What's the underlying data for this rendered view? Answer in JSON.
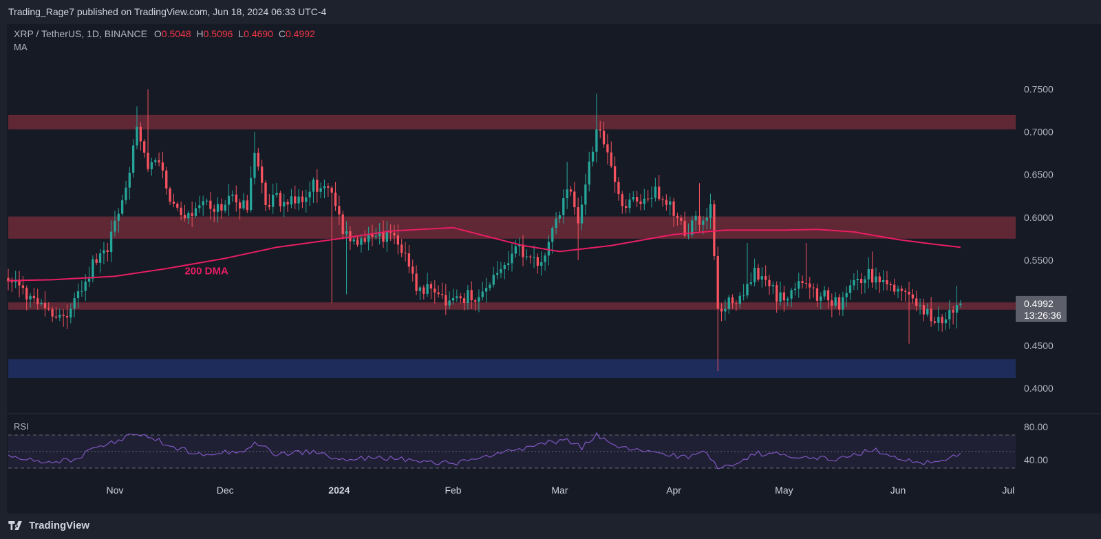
{
  "header": {
    "published_by": "Trading_Rage7 published on TradingView.com, Jun 18, 2024 06:33 UTC-4",
    "symbol": "XRP / TetherUS, 1D, BINANCE",
    "open_label": "O",
    "open_value": "0.5048",
    "high_label": "H",
    "high_value": "0.5096",
    "low_label": "L",
    "low_value": "0.4690",
    "close_label": "C",
    "close_value": "0.4992",
    "indicator_label": "MA"
  },
  "rsi_label": "RSI",
  "footer_brand": "TradingView",
  "colors": {
    "up": "#26a69a",
    "down": "#f7525f",
    "ma": "#e91e63",
    "resistance_zone": "#7a2c3a",
    "support_zone": "#1e2d5e",
    "rsi_line": "#7e57c2",
    "background": "#161a25"
  },
  "chart_data": [
    {
      "type": "candlestick",
      "y_ticks": [
        "0.7500",
        "0.7000",
        "0.6500",
        "0.6000",
        "0.5500",
        "0.4500",
        "0.4000"
      ],
      "ylim": [
        0.375,
        0.79
      ],
      "x_ticks": [
        "Nov",
        "Dec",
        "2024",
        "Feb",
        "Mar",
        "Apr",
        "May",
        "Jun",
        "Jul"
      ],
      "x_tick_dates": [
        "2023-11-01",
        "2023-12-01",
        "2024-01-01",
        "2024-02-01",
        "2024-03-01",
        "2024-04-01",
        "2024-05-01",
        "2024-06-01",
        "2024-07-01"
      ],
      "xlim": [
        "2023-10-03",
        "2024-07-03"
      ],
      "last_price": "0.4992",
      "countdown": "13:26:36",
      "anchors": [
        [
          "2023-10-03",
          0.525
        ],
        [
          "2023-10-10",
          0.505
        ],
        [
          "2023-10-13",
          0.485
        ],
        [
          "2023-10-20",
          0.49
        ],
        [
          "2023-10-23",
          0.52
        ],
        [
          "2023-10-26",
          0.545
        ],
        [
          "2023-10-30",
          0.56
        ],
        [
          "2023-11-04",
          0.64
        ],
        [
          "2023-11-07",
          0.7
        ],
        [
          "2023-11-10",
          0.66
        ],
        [
          "2023-11-13",
          0.67
        ],
        [
          "2023-11-16",
          0.62
        ],
        [
          "2023-11-20",
          0.6
        ],
        [
          "2023-11-24",
          0.62
        ],
        [
          "2023-11-28",
          0.605
        ],
        [
          "2023-12-02",
          0.62
        ],
        [
          "2023-12-07",
          0.61
        ],
        [
          "2023-12-09",
          0.67
        ],
        [
          "2023-12-12",
          0.62
        ],
        [
          "2023-12-17",
          0.62
        ],
        [
          "2023-12-20",
          0.615
        ],
        [
          "2023-12-25",
          0.64
        ],
        [
          "2023-12-30",
          0.625
        ],
        [
          "2024-01-03",
          0.575
        ],
        [
          "2024-01-06",
          0.57
        ],
        [
          "2024-01-09",
          0.585
        ],
        [
          "2024-01-12",
          0.575
        ],
        [
          "2024-01-16",
          0.575
        ],
        [
          "2024-01-19",
          0.56
        ],
        [
          "2024-01-23",
          0.51
        ],
        [
          "2024-01-26",
          0.52
        ],
        [
          "2024-01-30",
          0.5
        ],
        [
          "2024-02-04",
          0.505
        ],
        [
          "2024-02-09",
          0.51
        ],
        [
          "2024-02-15",
          0.54
        ],
        [
          "2024-02-18",
          0.57
        ],
        [
          "2024-02-21",
          0.555
        ],
        [
          "2024-02-25",
          0.545
        ],
        [
          "2024-02-28",
          0.58
        ],
        [
          "2024-03-03",
          0.64
        ],
        [
          "2024-03-06",
          0.59
        ],
        [
          "2024-03-08",
          0.63
        ],
        [
          "2024-03-11",
          0.71
        ],
        [
          "2024-03-14",
          0.68
        ],
        [
          "2024-03-17",
          0.62
        ],
        [
          "2024-03-21",
          0.62
        ],
        [
          "2024-03-27",
          0.63
        ],
        [
          "2024-03-31",
          0.61
        ],
        [
          "2024-04-04",
          0.58
        ],
        [
          "2024-04-08",
          0.6
        ],
        [
          "2024-04-11",
          0.61
        ],
        [
          "2024-04-13",
          0.49
        ],
        [
          "2024-04-17",
          0.5
        ],
        [
          "2024-04-21",
          0.52
        ],
        [
          "2024-04-23",
          0.54
        ],
        [
          "2024-04-27",
          0.52
        ],
        [
          "2024-05-01",
          0.5
        ],
        [
          "2024-05-05",
          0.53
        ],
        [
          "2024-05-10",
          0.51
        ],
        [
          "2024-05-16",
          0.5
        ],
        [
          "2024-05-20",
          0.525
        ],
        [
          "2024-05-24",
          0.535
        ],
        [
          "2024-05-28",
          0.52
        ],
        [
          "2024-06-02",
          0.52
        ],
        [
          "2024-06-06",
          0.5
        ],
        [
          "2024-06-09",
          0.49
        ],
        [
          "2024-06-12",
          0.48
        ],
        [
          "2024-06-16",
          0.495
        ],
        [
          "2024-06-18",
          0.4992
        ]
      ],
      "spikes": [
        [
          "2023-11-07",
          0.73,
          null
        ],
        [
          "2023-11-10",
          0.75,
          null
        ],
        [
          "2023-12-09",
          0.7,
          null
        ],
        [
          "2023-12-30",
          null,
          0.5
        ],
        [
          "2024-01-03",
          null,
          0.51
        ],
        [
          "2024-01-30",
          null,
          0.49
        ],
        [
          "2024-03-03",
          0.665,
          null
        ],
        [
          "2024-03-11",
          0.745,
          null
        ],
        [
          "2024-03-06",
          null,
          0.55
        ],
        [
          "2024-04-08",
          0.64,
          null
        ],
        [
          "2024-04-13",
          null,
          0.42
        ],
        [
          "2024-04-21",
          0.57,
          null
        ],
        [
          "2024-05-07",
          0.57,
          null
        ],
        [
          "2024-05-25",
          0.56,
          null
        ],
        [
          "2024-06-04",
          null,
          0.452
        ],
        [
          "2024-06-17",
          0.52,
          0.47
        ]
      ],
      "ma_200": {
        "label": "200 DMA",
        "points": [
          [
            "2023-10-03",
            0.526
          ],
          [
            "2023-10-15",
            0.527
          ],
          [
            "2023-11-01",
            0.531
          ],
          [
            "2023-11-15",
            0.54
          ],
          [
            "2023-12-01",
            0.552
          ],
          [
            "2023-12-15",
            0.565
          ],
          [
            "2024-01-01",
            0.575
          ],
          [
            "2024-01-15",
            0.584
          ],
          [
            "2024-02-01",
            0.588
          ],
          [
            "2024-02-10",
            0.578
          ],
          [
            "2024-02-20",
            0.567
          ],
          [
            "2024-03-01",
            0.56
          ],
          [
            "2024-03-15",
            0.567
          ],
          [
            "2024-04-01",
            0.58
          ],
          [
            "2024-04-15",
            0.585
          ],
          [
            "2024-05-01",
            0.585
          ],
          [
            "2024-05-10",
            0.586
          ],
          [
            "2024-05-20",
            0.583
          ],
          [
            "2024-06-01",
            0.574
          ],
          [
            "2024-06-10",
            0.569
          ],
          [
            "2024-06-18",
            0.565
          ]
        ]
      },
      "zones": [
        {
          "kind": "resistance",
          "low": 0.703,
          "high": 0.72
        },
        {
          "kind": "resistance",
          "low": 0.575,
          "high": 0.601
        },
        {
          "kind": "resistance",
          "low": 0.492,
          "high": 0.5005
        },
        {
          "kind": "support",
          "low": 0.412,
          "high": 0.434
        }
      ]
    },
    {
      "type": "line",
      "name": "RSI",
      "y_ticks": [
        "80.00",
        "40.00"
      ],
      "ylim": [
        20,
        90
      ],
      "bands": [
        30,
        50,
        70
      ],
      "anchors": [
        [
          "2023-10-03",
          47
        ],
        [
          "2023-10-13",
          35
        ],
        [
          "2023-10-22",
          42
        ],
        [
          "2023-10-26",
          56
        ],
        [
          "2023-11-01",
          62
        ],
        [
          "2023-11-07",
          73
        ],
        [
          "2023-11-10",
          70
        ],
        [
          "2023-11-16",
          55
        ],
        [
          "2023-11-25",
          48
        ],
        [
          "2023-12-05",
          50
        ],
        [
          "2023-12-09",
          60
        ],
        [
          "2023-12-15",
          47
        ],
        [
          "2023-12-25",
          50
        ],
        [
          "2024-01-03",
          38
        ],
        [
          "2024-01-10",
          44
        ],
        [
          "2024-01-20",
          40
        ],
        [
          "2024-01-27",
          35
        ],
        [
          "2024-02-05",
          38
        ],
        [
          "2024-02-15",
          48
        ],
        [
          "2024-02-22",
          56
        ],
        [
          "2024-03-03",
          65
        ],
        [
          "2024-03-07",
          55
        ],
        [
          "2024-03-11",
          70
        ],
        [
          "2024-03-16",
          55
        ],
        [
          "2024-03-25",
          50
        ],
        [
          "2024-04-05",
          43
        ],
        [
          "2024-04-10",
          50
        ],
        [
          "2024-04-13",
          30
        ],
        [
          "2024-04-20",
          40
        ],
        [
          "2024-04-23",
          48
        ],
        [
          "2024-05-05",
          45
        ],
        [
          "2024-05-15",
          40
        ],
        [
          "2024-05-25",
          52
        ],
        [
          "2024-06-05",
          38
        ],
        [
          "2024-06-12",
          36
        ],
        [
          "2024-06-18",
          48
        ]
      ]
    }
  ]
}
